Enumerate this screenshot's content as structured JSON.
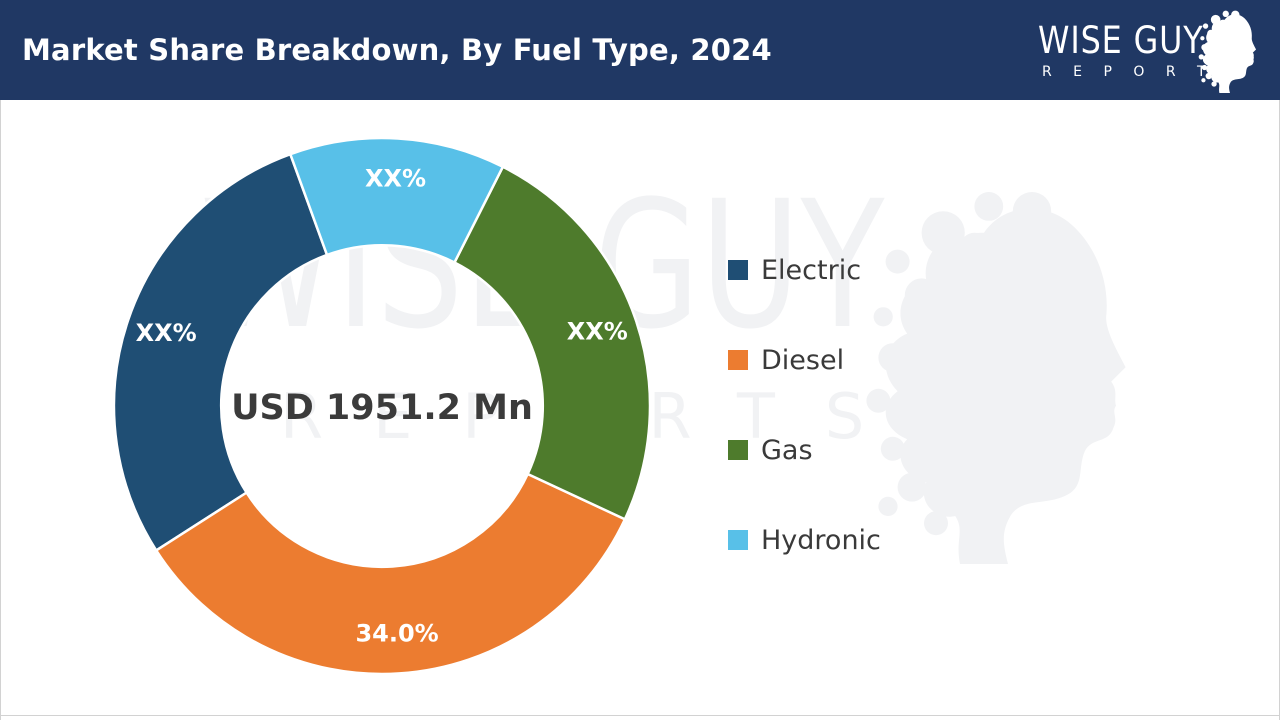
{
  "header": {
    "title": "Market Share Breakdown, By Fuel Type, 2024",
    "brand": {
      "line1": "WISE GUY",
      "line2": "R E P O R T S"
    }
  },
  "watermark": {
    "line1": "WISE GUY",
    "line2": "REPORTS"
  },
  "chart_data": {
    "type": "pie",
    "subtype": "donut",
    "title": "Market Share Breakdown, By Fuel Type, 2024",
    "center_label": "USD 1951.2 Mn",
    "categories": [
      "Electric",
      "Diesel",
      "Gas",
      "Hydronic"
    ],
    "values": [
      28.5,
      34.0,
      24.5,
      13.0
    ],
    "slice_labels": [
      "XX%",
      "34.0%",
      "XX%",
      "XX%"
    ],
    "colors": [
      "#1f4e74",
      "#ec7c30",
      "#4e7b2c",
      "#58c0e8"
    ],
    "start_angle_deg": 110,
    "direction": "counterclockwise",
    "inner_radius_ratio": 0.6,
    "label_radius_ratio": 0.85,
    "legend_position": "right",
    "slice_gap_color": "#ffffff"
  },
  "colors": {
    "header_bg": "#203864",
    "title_text": "#ffffff",
    "center_text": "#3b3b3b",
    "legend_text": "#3a3a3a",
    "watermark": "#f1f2f4",
    "frame_border": "#d2d2d2"
  }
}
